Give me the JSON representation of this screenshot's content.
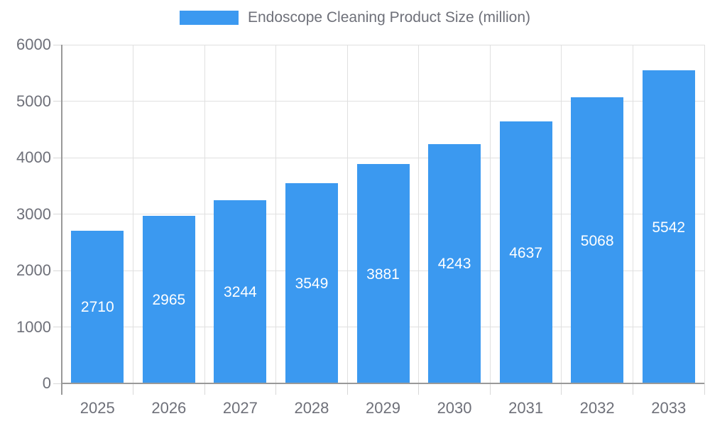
{
  "legend": {
    "label": "Endoscope Cleaning Product Size (million)"
  },
  "colors": {
    "bar": "#3B99F0",
    "axis_line": "#999999",
    "grid_line": "#E0E0E0",
    "tick_line": "#D8D8D8",
    "axis_text": "#6E7079",
    "value_text": "#FFFFFF",
    "background": "#FFFFFF"
  },
  "chart_data": {
    "type": "bar",
    "title": "Endoscope Cleaning Product Size (million)",
    "series_name": "Endoscope Cleaning Product Size (million)",
    "categories": [
      "2025",
      "2026",
      "2027",
      "2028",
      "2029",
      "2030",
      "2031",
      "2032",
      "2033"
    ],
    "values": [
      2710,
      2965,
      3244,
      3549,
      3881,
      4243,
      4637,
      5068,
      5542
    ],
    "xlabel": "",
    "ylabel": "",
    "ylim": [
      0,
      6000
    ],
    "ytick_step": 1000,
    "ytick_labels": [
      "0",
      "1000",
      "2000",
      "3000",
      "4000",
      "5000",
      "6000"
    ],
    "grid": true,
    "legend_position": "top-center",
    "value_label_position": "inside-center"
  }
}
